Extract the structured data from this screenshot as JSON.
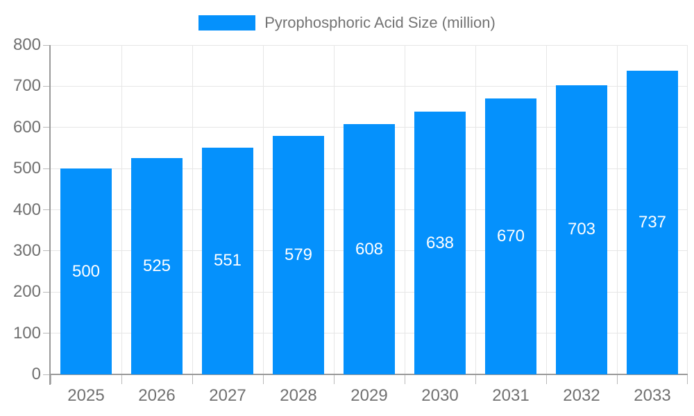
{
  "legend": {
    "label": "Pyrophosphoric Acid Size (million)"
  },
  "chart_data": {
    "type": "bar",
    "title": "",
    "categories": [
      "2025",
      "2026",
      "2027",
      "2028",
      "2029",
      "2030",
      "2031",
      "2032",
      "2033"
    ],
    "series": [
      {
        "name": "Pyrophosphoric Acid Size (million)",
        "values": [
          500,
          525,
          551,
          579,
          608,
          638,
          670,
          703,
          737
        ]
      }
    ],
    "bar_value_labels": [
      "500",
      "525",
      "551",
      "579",
      "608",
      "638",
      "670",
      "703",
      "737"
    ],
    "xlabel": "",
    "ylabel": "",
    "ylim": [
      0,
      800
    ],
    "ytick_step": 100,
    "ytick_labels": [
      "0",
      "100",
      "200",
      "300",
      "400",
      "500",
      "600",
      "700",
      "800"
    ],
    "grid": true,
    "legend_position": "top"
  },
  "colors": {
    "bar": "#0591FC",
    "gridline": "#E6E6E6",
    "axis_line": "#999999",
    "tick_mark": "#B9B9B9",
    "tick_text": "#707070",
    "legend_text": "#737373",
    "bar_label_text": "#FFFFFF",
    "background": "#FFFFFF"
  }
}
